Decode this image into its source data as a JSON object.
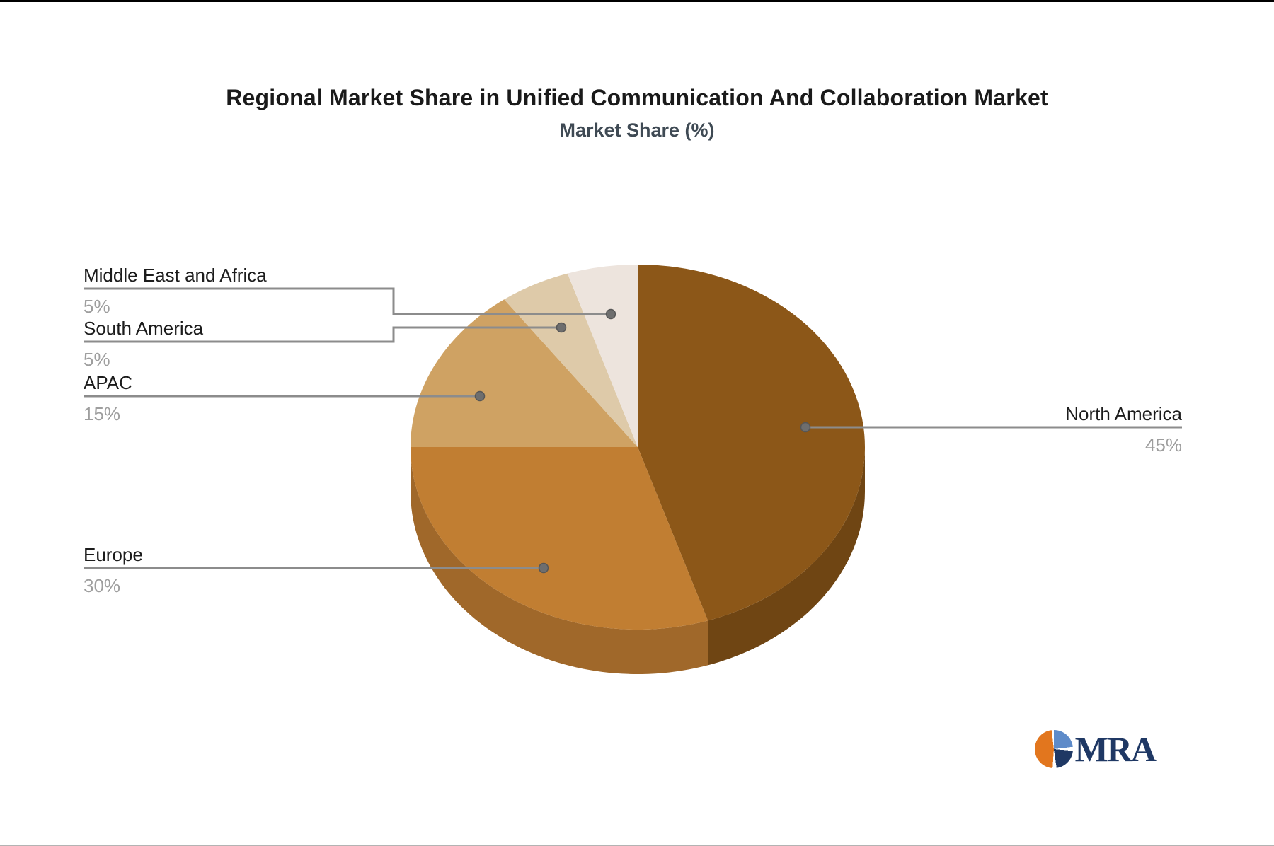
{
  "chart_data": {
    "type": "pie",
    "style": "3d",
    "title": "Regional Market Share in Unified Communication And Collaboration Market",
    "subtitle": "Market Share (%)",
    "unit": "%",
    "start_angle_deg": 0,
    "direction": "clockwise",
    "legend_position": "callout-labels",
    "slices": [
      {
        "label": "North America",
        "value": 45,
        "pct": "45%",
        "color": "#8C5718",
        "wall": "#6F4513",
        "label_side": "right"
      },
      {
        "label": "Europe",
        "value": 30,
        "pct": "30%",
        "color": "#C17E32",
        "wall": "#A0682A",
        "label_side": "left"
      },
      {
        "label": "APAC",
        "value": 15,
        "pct": "15%",
        "color": "#CFA263",
        "wall": null,
        "label_side": "left"
      },
      {
        "label": "South America",
        "value": 5,
        "pct": "5%",
        "color": "#DECAA9",
        "wall": null,
        "label_side": "left"
      },
      {
        "label": "Middle East and Africa",
        "value": 5,
        "pct": "5%",
        "color": "#EDE4DD",
        "wall": null,
        "label_side": "left"
      }
    ],
    "callout_color": "#8c8c8c",
    "dot_color": "#6e6e6e"
  },
  "logo": {
    "text": "MRA",
    "navy": "#1f3864",
    "orange": "#e2761e",
    "blue": "#5e8bc9"
  }
}
